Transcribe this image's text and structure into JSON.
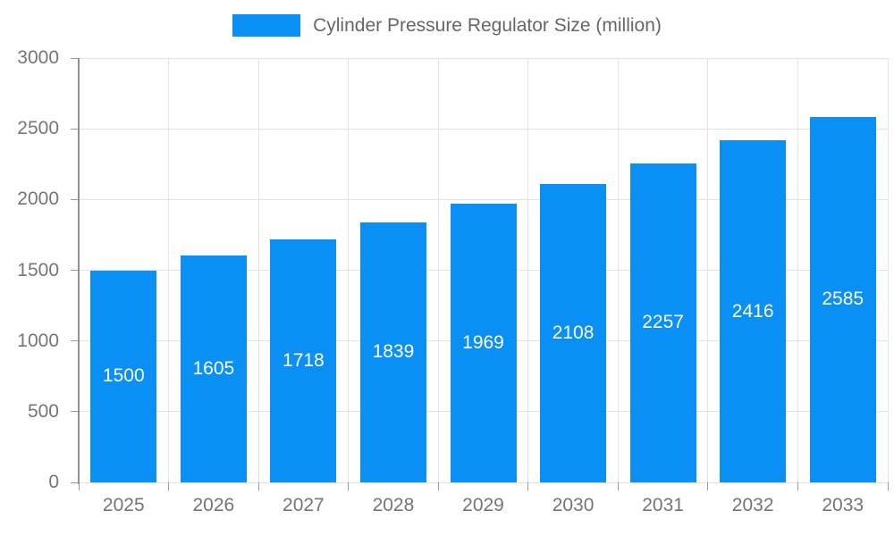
{
  "chart_data": {
    "type": "bar",
    "title": "Cylinder Pressure Regulator Size (million)",
    "categories": [
      "2025",
      "2026",
      "2027",
      "2028",
      "2029",
      "2030",
      "2031",
      "2032",
      "2033"
    ],
    "values": [
      1500,
      1605,
      1718,
      1839,
      1969,
      2108,
      2257,
      2416,
      2585
    ],
    "xlabel": "",
    "ylabel": "",
    "ylim": [
      0,
      3000
    ],
    "ytick_step": 500,
    "grid": true,
    "legend_position": "top-center",
    "bar_value_labels": "inside-middle"
  },
  "colors": {
    "bar": "#0a90f5",
    "grid_line": "#e3e3e3",
    "axis_line": "#909090",
    "tick": "#9a9a9a",
    "axis_text": "#757575",
    "legend_text": "#666666",
    "bar_label_text": "#ffffff",
    "background": "#ffffff"
  }
}
